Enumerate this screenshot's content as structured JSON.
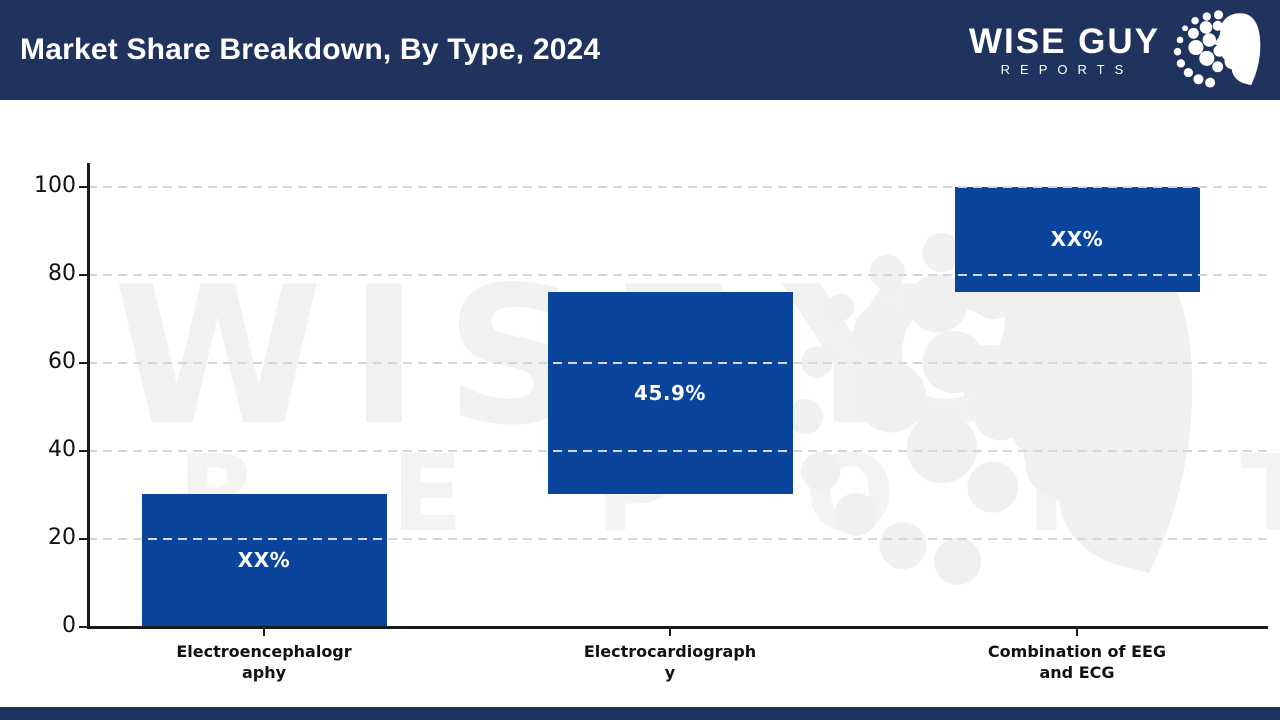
{
  "header": {
    "title": "Market Share Breakdown, By Type, 2024",
    "logo": {
      "wordmark": "WISE GUY",
      "subtext": "REPORTS"
    }
  },
  "watermark": {
    "wordmark_left": "WISE G",
    "wordmark_right": "Y",
    "subtext": "R E P O R T S"
  },
  "chart_data": {
    "type": "bar",
    "subtype": "floating-segment-breakdown",
    "title": "Market Share Breakdown, By Type, 2024",
    "categories": [
      "Electroencephalography",
      "Electrocardiography",
      "Combination of EEG and ECG"
    ],
    "category_label_lines": [
      [
        "Electroencephalogr",
        "aphy"
      ],
      [
        "Electrocardiograph",
        "y"
      ],
      [
        "Combination of EEG",
        "and ECG"
      ]
    ],
    "segments": [
      {
        "category": "Electroencephalography",
        "start": 0,
        "end": 30.3,
        "value_label": "XX%"
      },
      {
        "category": "Electrocardiography",
        "start": 30.3,
        "end": 76.2,
        "value_label": "45.9%"
      },
      {
        "category": "Combination of EEG and ECG",
        "start": 76.2,
        "end": 100,
        "value_label": "XX%"
      }
    ],
    "y_ticks": [
      0,
      20,
      40,
      60,
      80,
      100
    ],
    "ylim": [
      0,
      100
    ],
    "xlabel": "",
    "ylabel": "",
    "grid": "horizontal-dashed",
    "legend": "none",
    "bar_color": "#0a449c",
    "value_label_color": "#ffffff"
  },
  "colors": {
    "header_bg": "#20335e",
    "footer_bg": "#20335e",
    "bar": "#0a449c",
    "gridline": "#d6d6d6",
    "axis": "#1a1a1a",
    "watermark": "#f1f1f1"
  }
}
